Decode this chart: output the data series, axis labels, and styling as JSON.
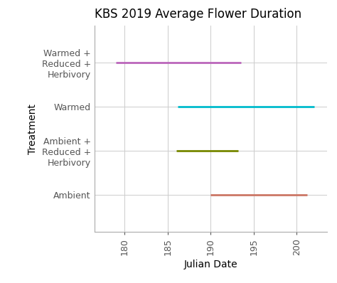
{
  "title": "KBS 2019 Average Flower Duration",
  "xlabel": "Julian Date",
  "ylabel": "Treatment",
  "lines": [
    {
      "y": 3,
      "x_start": 179.0,
      "x_end": 193.5,
      "color": "#BB66BB",
      "lw": 2.0
    },
    {
      "y": 2,
      "x_start": 186.2,
      "x_end": 202.0,
      "color": "#00BBCC",
      "lw": 2.0
    },
    {
      "y": 1,
      "x_start": 186.0,
      "x_end": 193.2,
      "color": "#778800",
      "lw": 2.0
    },
    {
      "y": 0,
      "x_start": 190.0,
      "x_end": 201.2,
      "color": "#CC7766",
      "lw": 2.0
    }
  ],
  "xlim": [
    176.5,
    203.5
  ],
  "ylim": [
    -0.85,
    3.85
  ],
  "xticks": [
    180,
    185,
    190,
    195,
    200
  ],
  "ytick_positions": [
    0,
    1,
    2,
    3
  ],
  "ytick_labels": [
    "Ambient",
    "Ambient +\nReduced +\nHerbivory",
    "Warmed",
    "Warmed +\nReduced +\nHerbivory"
  ],
  "background_color": "#FFFFFF",
  "grid_color": "#CCCCCC",
  "title_fontsize": 12,
  "axis_label_fontsize": 10,
  "tick_fontsize": 9
}
